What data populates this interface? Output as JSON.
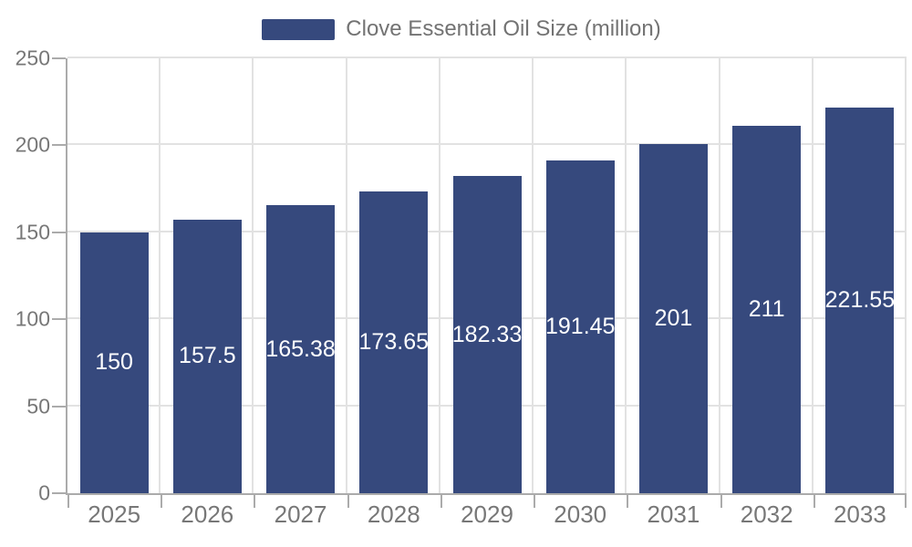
{
  "chart_data": {
    "type": "bar",
    "title": "",
    "legend": {
      "label": "Clove Essential Oil Size (million)",
      "position": "top-center"
    },
    "categories": [
      "2025",
      "2026",
      "2027",
      "2028",
      "2029",
      "2030",
      "2031",
      "2032",
      "2033"
    ],
    "series": [
      {
        "name": "Clove Essential Oil Size (million)",
        "values": [
          150,
          157.5,
          165.38,
          173.65,
          182.33,
          191.45,
          201,
          211,
          221.55
        ]
      }
    ],
    "value_labels": [
      "150",
      "157.5",
      "165.38",
      "173.65",
      "182.33",
      "191.45",
      "201",
      "211",
      "221.55"
    ],
    "xlabel": "",
    "ylabel": "",
    "y_ticks": [
      0,
      50,
      100,
      150,
      200,
      250
    ],
    "ylim": [
      0,
      250
    ],
    "grid": true,
    "value_label_position": "center-inside",
    "colors": {
      "bar": "#36497d",
      "axis": "#ababab",
      "gridline": "#e2e2e2",
      "tick_label": "#777777",
      "value_label": "#ffffff",
      "legend_text": "#737373",
      "background": "#ffffff"
    }
  }
}
